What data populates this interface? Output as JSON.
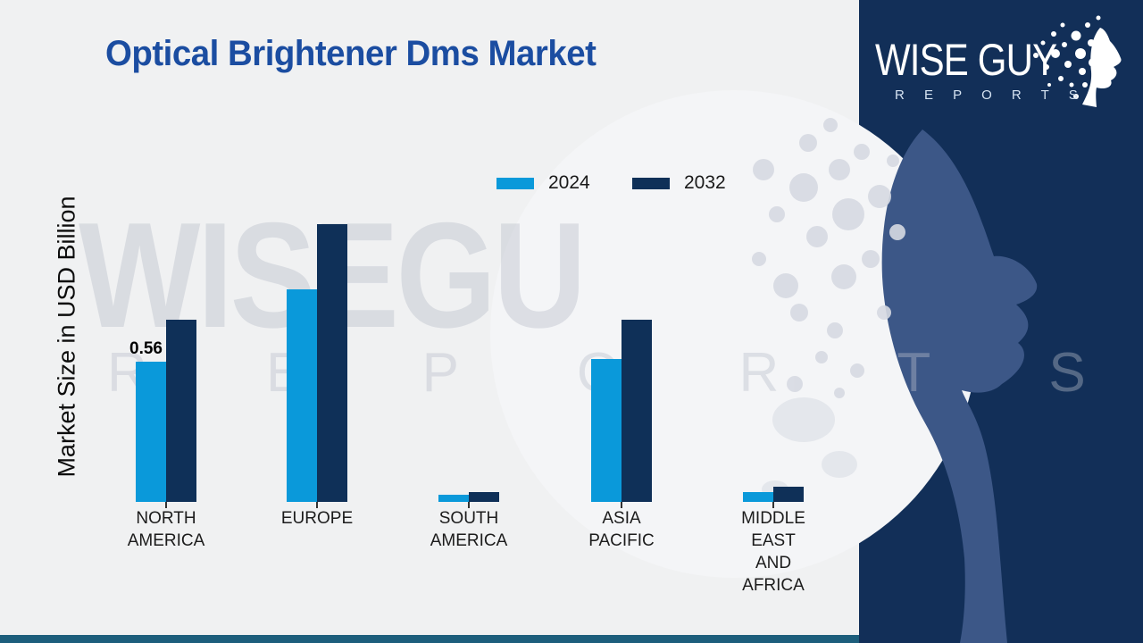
{
  "page": {
    "title": "Optical Brightener Dms Market"
  },
  "branding": {
    "logo_title": "WISE GUY",
    "logo_subtitle": "R E P O R T S",
    "watermark_title": "WISEGU",
    "watermark_subtitle": "R E P O R T S"
  },
  "legend": {
    "items": [
      "2024",
      "2032"
    ],
    "position": "top"
  },
  "chart_data": {
    "type": "bar",
    "title": "Optical Brightener Dms Market",
    "ylabel": "Market Size in USD Billion",
    "unit": "USD Billion",
    "gridlines": false,
    "legend_position": "top",
    "categories": [
      "North America",
      "Europe",
      "South America",
      "Asia Pacific",
      "Middle East and Africa"
    ],
    "categories_display": [
      [
        "NORTH",
        "AMERICA"
      ],
      [
        "EUROPE"
      ],
      [
        "SOUTH",
        "AMERICA"
      ],
      [
        "ASIA",
        "PACIFIC"
      ],
      [
        "MIDDLE",
        "EAST",
        "AND",
        "AFRICA"
      ]
    ],
    "series": [
      {
        "name": "2024",
        "color": "#0a99da",
        "values": [
          0.56,
          0.85,
          0.03,
          0.57,
          0.04
        ]
      },
      {
        "name": "2032",
        "color": "#0f3058",
        "values": [
          0.73,
          1.11,
          0.04,
          0.73,
          0.06
        ]
      }
    ],
    "visible_data_label": {
      "series": "2024",
      "category": "North America",
      "text": "0.56"
    }
  },
  "colors": {
    "background": "#f0f1f2",
    "bar_2024": "#0a99da",
    "bar_2032": "#0f3058",
    "brand_panel_navy": "#122f58",
    "face_silhouette": "#3c5787",
    "footer_teal": "#1d5e7c",
    "title_blue": "#1b4da1",
    "watermark_gray": "#c6cad4"
  }
}
